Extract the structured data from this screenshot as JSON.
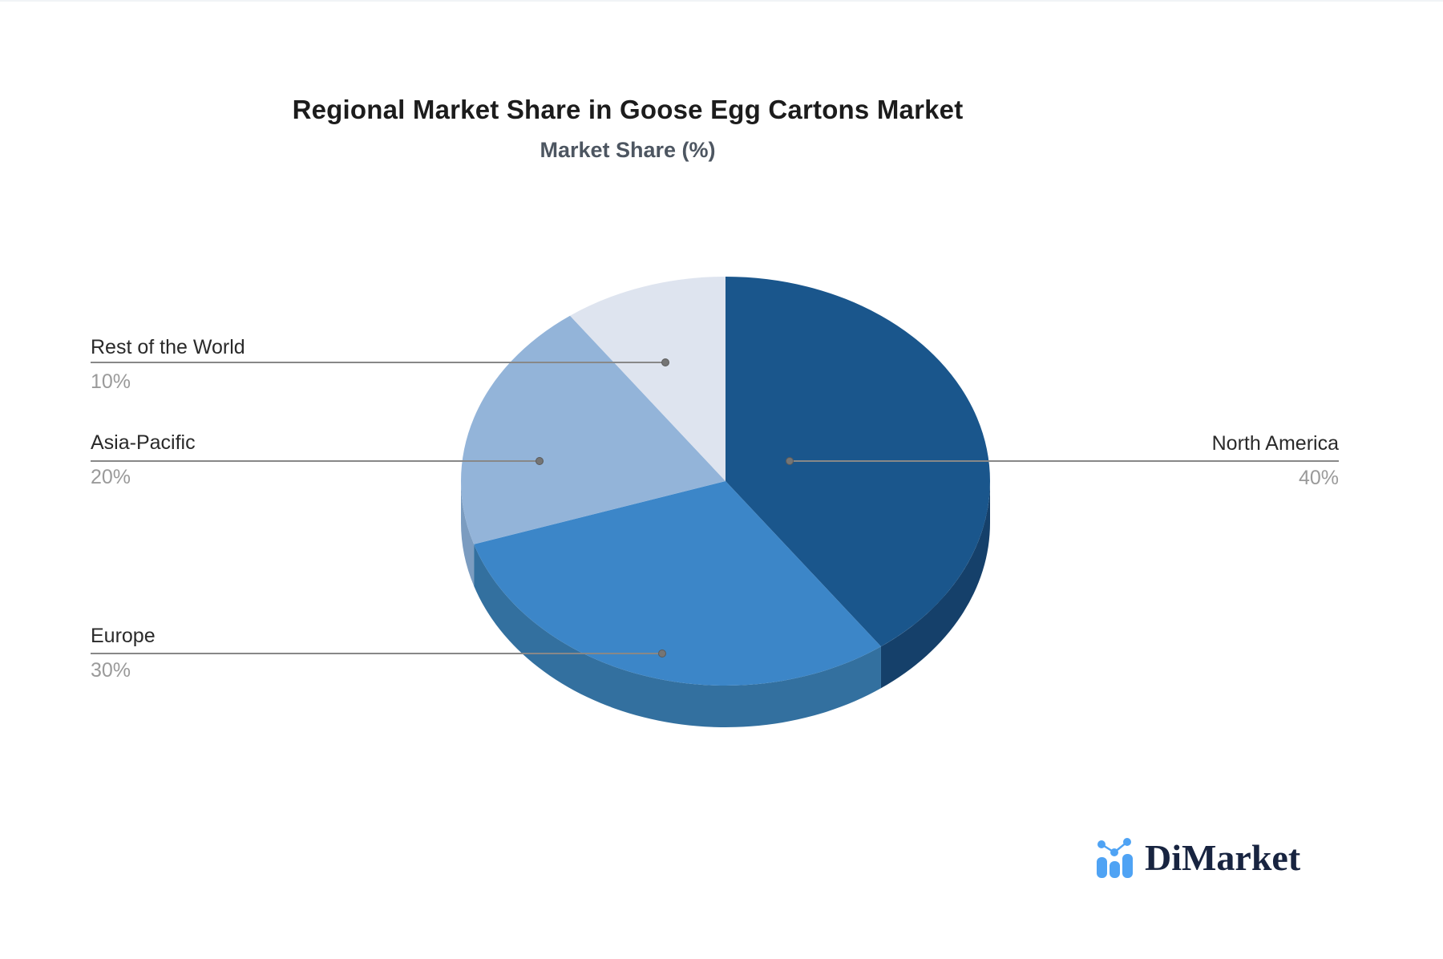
{
  "chart_data": {
    "type": "pie",
    "effect": "3d",
    "title": "Regional Market Share in Goose Egg Cartons Market",
    "subtitle": "Market Share (%)",
    "unit": "%",
    "start_angle_deg_from_top": 0,
    "direction": "clockwise",
    "legend_position": "callout-labels",
    "slices": [
      {
        "label": "North America",
        "value": 40,
        "pct_label": "40%",
        "color": "#1A568C",
        "side_color": "#15406A"
      },
      {
        "label": "Europe",
        "value": 30,
        "pct_label": "30%",
        "color": "#3C86C8",
        "side_color": "#33709F"
      },
      {
        "label": "Asia-Pacific",
        "value": 20,
        "pct_label": "20%",
        "color": "#93B4D9",
        "side_color": "#7B9CC0"
      },
      {
        "label": "Rest of the World",
        "value": 10,
        "pct_label": "10%",
        "color": "#DEE4EF",
        "side_color": "#C2CCDC"
      }
    ],
    "callout_style": {
      "line_color": "#888888",
      "dot_color": "#757575",
      "label_color": "#2a2a2a",
      "pct_color": "#9a9a9a"
    }
  },
  "branding": {
    "name": "DiMarket",
    "icon": "bar-line-chart-logo-icon",
    "icon_color": "#4FA3F4",
    "text_color": "#182440"
  }
}
